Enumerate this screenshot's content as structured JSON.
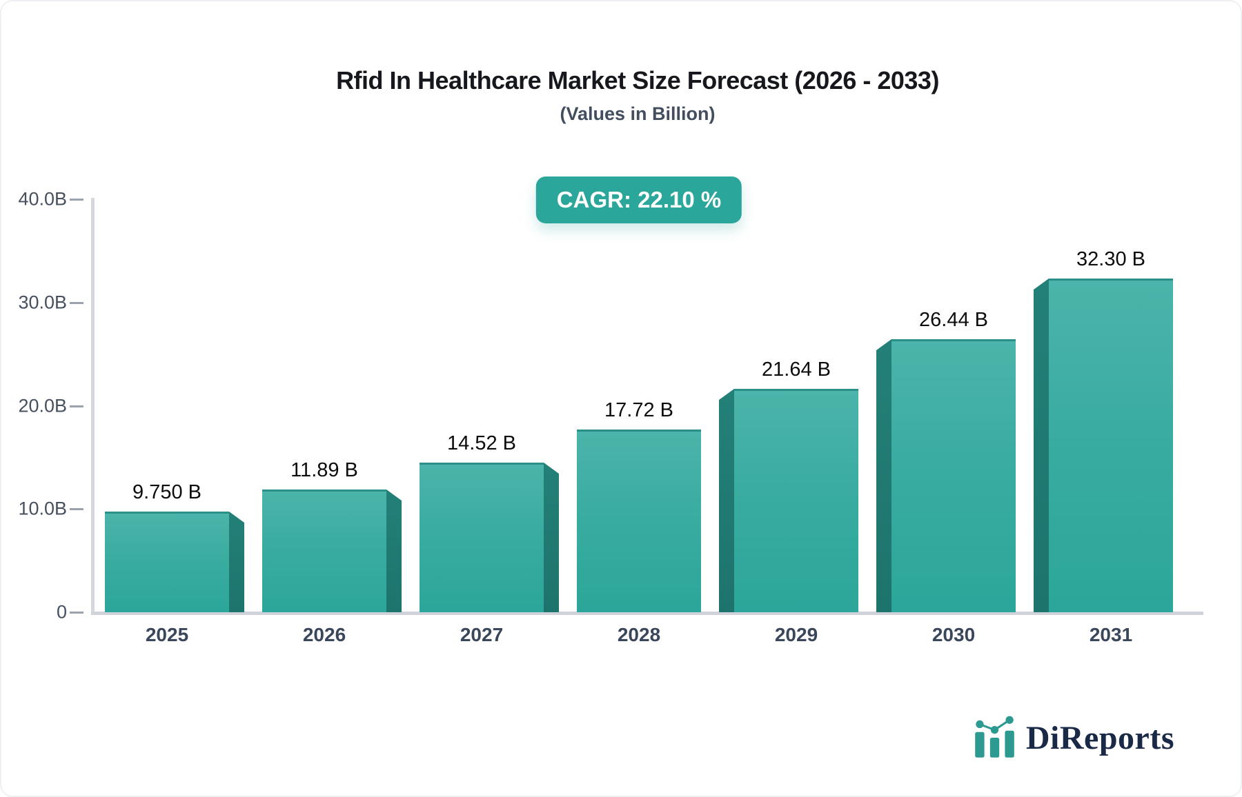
{
  "header": {
    "title": "Rfid In Healthcare Market Size Forecast (2026 - 2033)",
    "subtitle": "(Values in Billion)",
    "cagr_badge": "CAGR: 22.10 %"
  },
  "chart_data": {
    "type": "bar",
    "title": "Rfid In Healthcare Market Size Forecast (2026 - 2033)",
    "subtitle": "(Values in Billion)",
    "cagr_percent": 22.1,
    "unit": "Billion",
    "categories": [
      "2025",
      "2026",
      "2027",
      "2028",
      "2029",
      "2030",
      "2031"
    ],
    "values": [
      9.75,
      11.89,
      14.52,
      17.72,
      21.64,
      26.44,
      32.3
    ],
    "value_labels": [
      "9.750 B",
      "11.89 B",
      "14.52 B",
      "17.72 B",
      "21.64 B",
      "26.44 B",
      "32.30 B"
    ],
    "ylabel": "",
    "xlabel": "",
    "ylim": [
      0,
      40
    ],
    "ytick_values": [
      40,
      30,
      20,
      10,
      0
    ],
    "ytick_labels": [
      "40.0B",
      "30.0B",
      "20.0B",
      "10.0B",
      "0"
    ],
    "grid": false,
    "legend": false,
    "bar_style": "3d-bevel",
    "colors": {
      "bar_face_top": "#4cb4aa",
      "bar_face_bottom": "#2ca69a",
      "bar_top_edge": "#2b9088",
      "bar_side_dark": "#1f7e76",
      "badge_background": "#2aa69a",
      "badge_text": "#ffffff",
      "axis_line": "#d2d5dc",
      "tick": "#9aa2ae",
      "axis_label_text": "#46505f",
      "x_label_text": "#3a465a",
      "value_label_text": "#0b0c0e",
      "title_text": "#16181d",
      "subtitle_text": "#424e5e",
      "brand_navy": "#1a2946",
      "brand_teal": "#2d9a92"
    }
  },
  "footer": {
    "brand": "DiReports",
    "logo_icon": "bar-chart-trend-icon"
  }
}
